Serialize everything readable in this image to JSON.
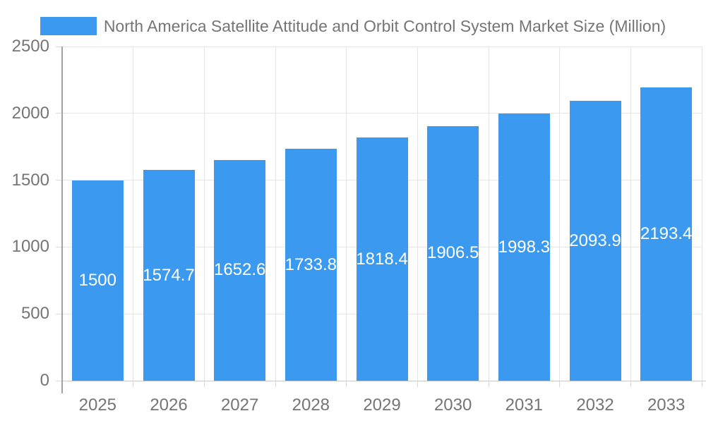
{
  "chart_data": {
    "type": "bar",
    "title": "North America Satellite Attitude and Orbit Control System Market Size (Million)",
    "legend_position": "top",
    "categories": [
      "2025",
      "2026",
      "2027",
      "2028",
      "2029",
      "2030",
      "2031",
      "2032",
      "2033"
    ],
    "values": [
      1500,
      1574.7,
      1652.6,
      1733.8,
      1818.4,
      1906.5,
      1998.3,
      2093.9,
      2193.4
    ],
    "series": [
      {
        "name": "North America Satellite Attitude and Orbit Control System Market Size (Million)",
        "values": [
          1500,
          1574.7,
          1652.6,
          1733.8,
          1818.4,
          1906.5,
          1998.3,
          2093.9,
          2193.4
        ]
      }
    ],
    "xlabel": "",
    "ylabel": "",
    "ylim": [
      0,
      2500
    ],
    "yticks": [
      0,
      500,
      1000,
      1500,
      2000,
      2500
    ],
    "grid": true,
    "data_labels": "inside-center"
  },
  "colors": {
    "bar": "#3B99F0",
    "bar_label": "#ffffff",
    "text": "#757575",
    "gridline": "#e6e6e6",
    "baseline": "#c9c9c9",
    "axis_line": "#a3a3a3",
    "tick": "#d9d9d9",
    "background": "#ffffff"
  }
}
